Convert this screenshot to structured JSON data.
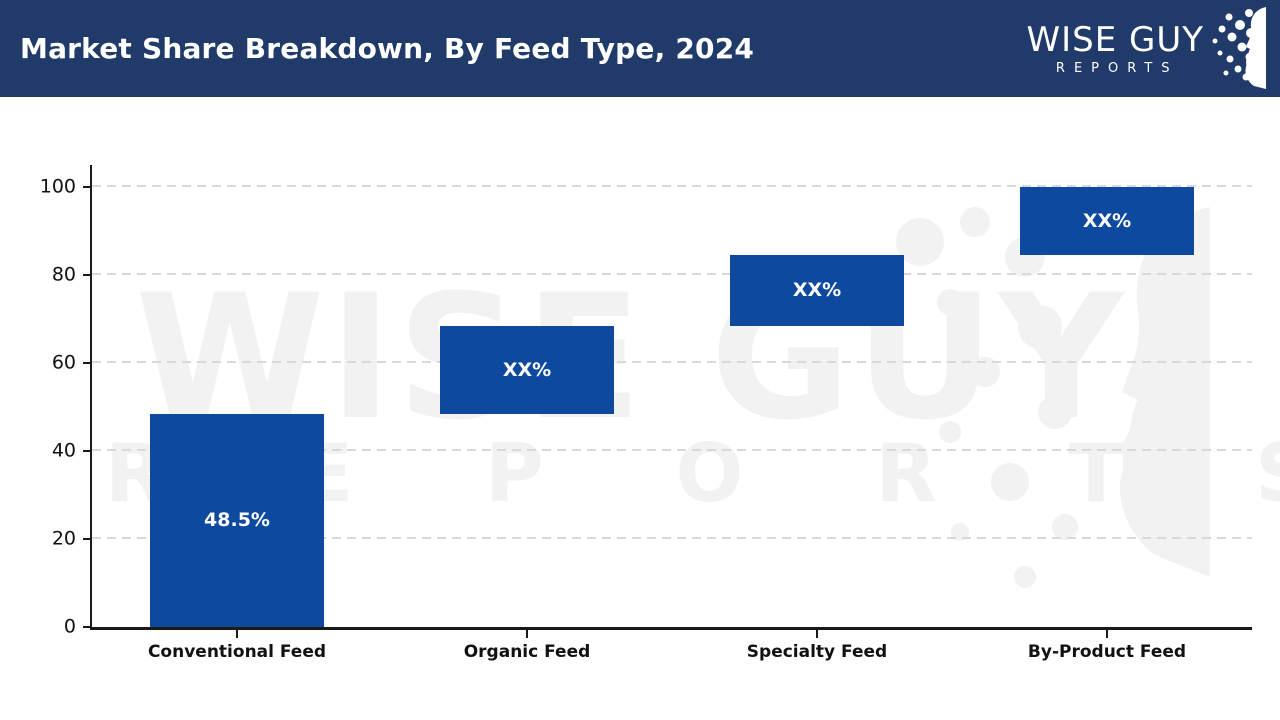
{
  "header": {
    "title": "Market Share Breakdown, By Feed Type, 2024",
    "bg_color": "#203a69",
    "logo": {
      "line1": "WISE GUY",
      "line2": "REPORTS"
    }
  },
  "watermark": {
    "line1": "WISE GUY",
    "line2": "R E P O R T S"
  },
  "chart_data": {
    "type": "bar",
    "subtype": "waterfall",
    "title": "Market Share Breakdown, By Feed Type, 2024",
    "categories": [
      "Conventional Feed",
      "Organic Feed",
      "Specialty Feed",
      "By-Product Feed"
    ],
    "series": [
      {
        "name": "Market Share",
        "segments": [
          {
            "category": "Conventional Feed",
            "start": 0,
            "end": 48.5,
            "label": "48.5%"
          },
          {
            "category": "Organic Feed",
            "start": 48.5,
            "end": 68.5,
            "label": "XX%"
          },
          {
            "category": "Specialty Feed",
            "start": 68.5,
            "end": 84.5,
            "label": "XX%"
          },
          {
            "category": "By-Product Feed",
            "start": 84.5,
            "end": 100,
            "label": "XX%"
          }
        ]
      }
    ],
    "xlabel": "",
    "ylabel": "",
    "ylim": [
      0,
      105
    ],
    "yticks": [
      0,
      20,
      40,
      60,
      80,
      100
    ],
    "grid": "horizontal-dashed",
    "legend": "none",
    "bar_color": "#0d4a9f",
    "bar_label_color": "#ffffff",
    "axis_color": "#1a1a1a",
    "grid_color": "#d9d9d9",
    "watermark_color": "#f2f2f2"
  }
}
